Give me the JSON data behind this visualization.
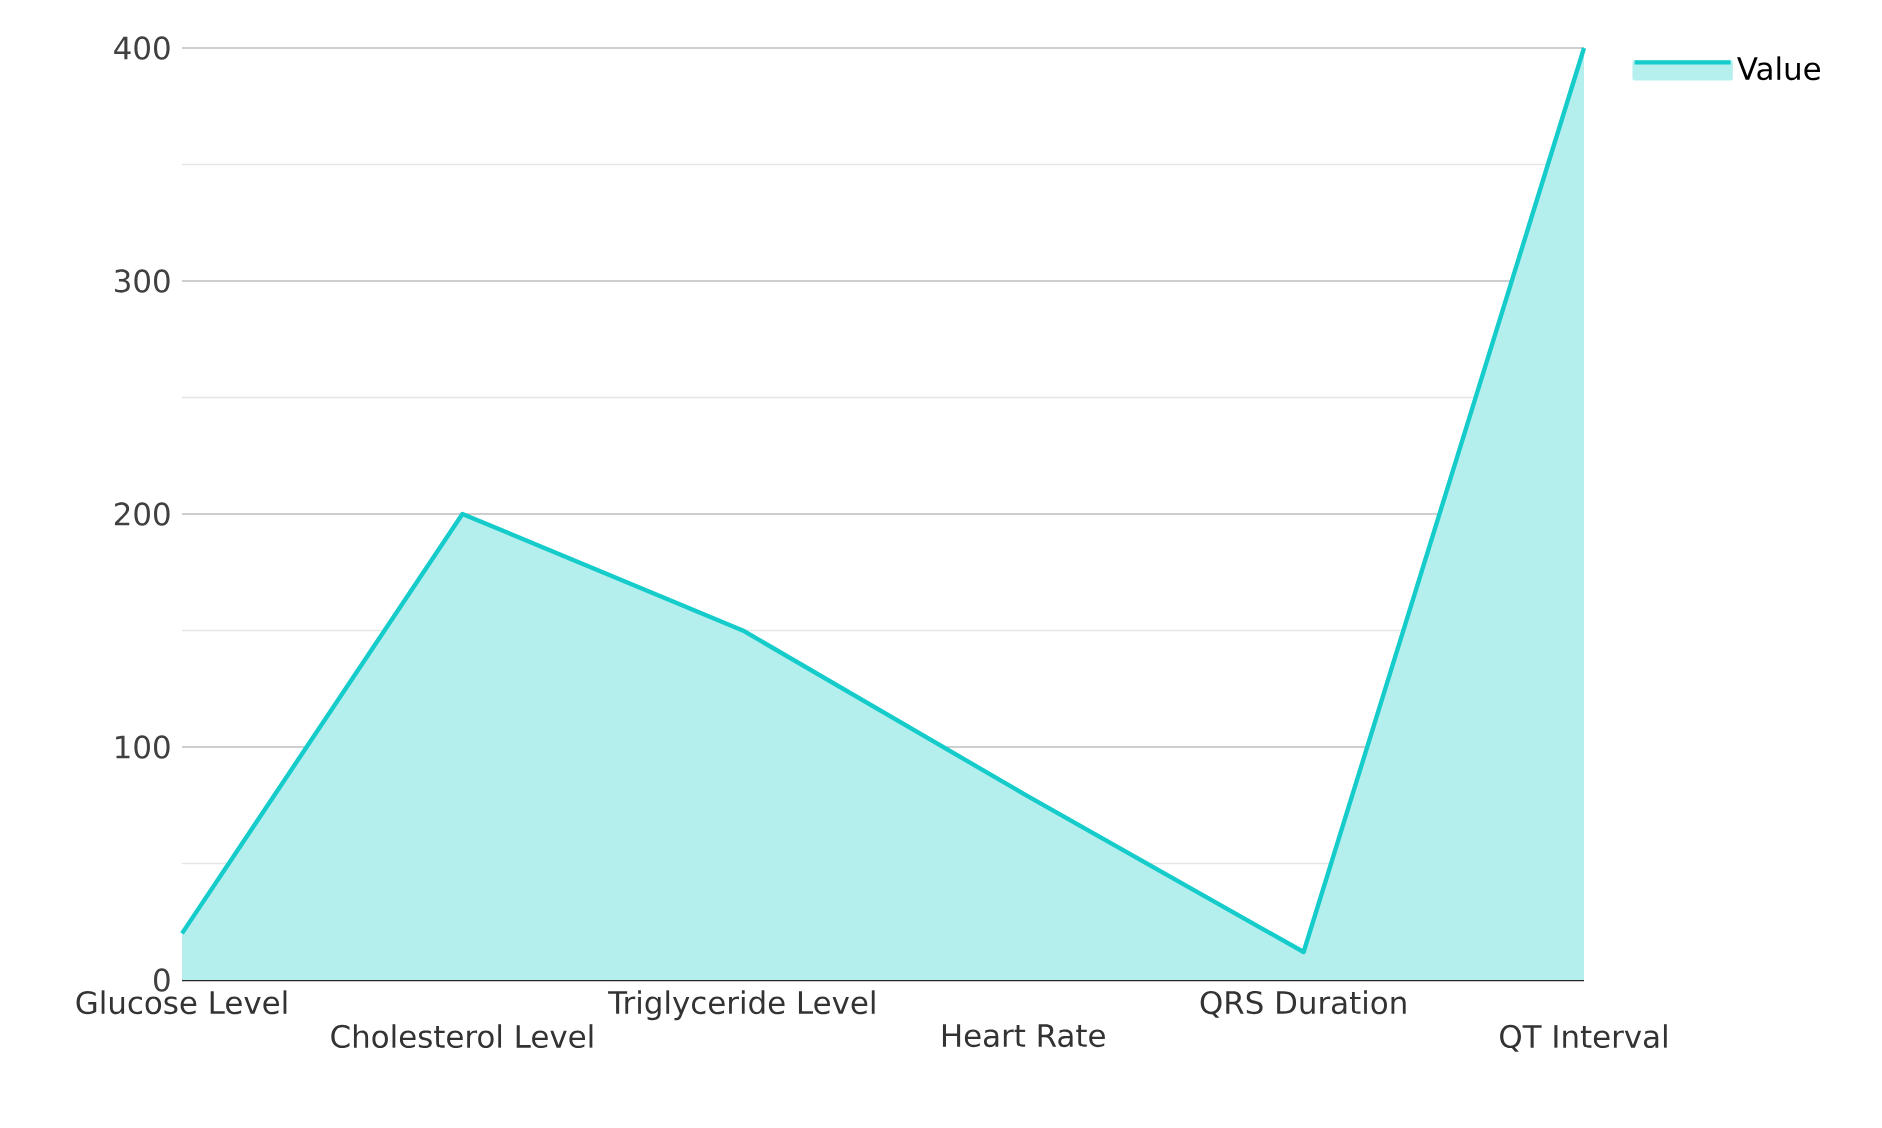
{
  "chart_data": {
    "type": "area",
    "categories": [
      "Glucose Level",
      "Cholesterol Level",
      "Triglyceride Level",
      "Heart Rate",
      "QRS Duration",
      "QT Interval"
    ],
    "series": [
      {
        "name": "Value",
        "color": "#16cccb",
        "values": [
          20,
          200,
          150,
          80,
          12,
          400
        ]
      }
    ],
    "ylim": [
      0,
      400
    ],
    "yticks": [
      0,
      100,
      200,
      300,
      400
    ],
    "grid": "y",
    "legend": "top right"
  }
}
